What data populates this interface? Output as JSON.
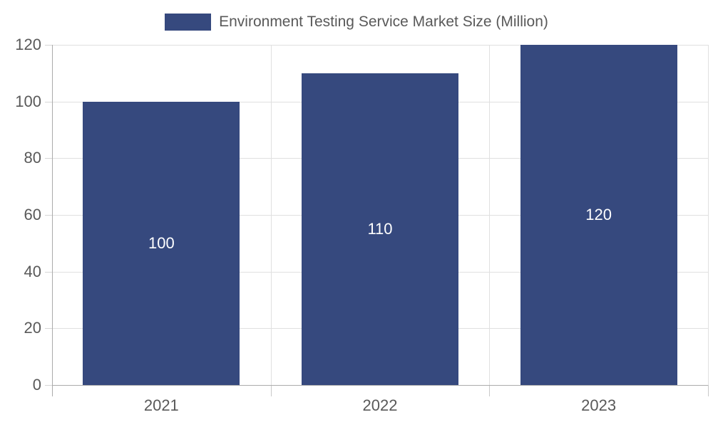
{
  "legend": {
    "label": "Environment Testing Service Market Size (Million)"
  },
  "chart_data": {
    "type": "bar",
    "title": "Environment Testing Service Market Size (Million)",
    "categories": [
      "2021",
      "2022",
      "2023"
    ],
    "values": [
      100,
      110,
      120
    ],
    "value_labels": [
      "100",
      "110",
      "120"
    ],
    "ytick_labels": [
      "0",
      "20",
      "40",
      "60",
      "80",
      "100",
      "120"
    ],
    "yticks": [
      0,
      20,
      40,
      60,
      80,
      100,
      120
    ],
    "ylim": [
      0,
      120
    ],
    "xlabel": "",
    "ylabel": "",
    "grid": true,
    "legend_position": "top-center",
    "colors": {
      "bar": "#36497E",
      "bar_value_text": "#FFFFFF",
      "axis_line": "#ABABAB",
      "gridline": "#E0E0E0",
      "tick_text": "#595959",
      "legend_text": "#595959",
      "background": "#FFFFFF"
    }
  }
}
